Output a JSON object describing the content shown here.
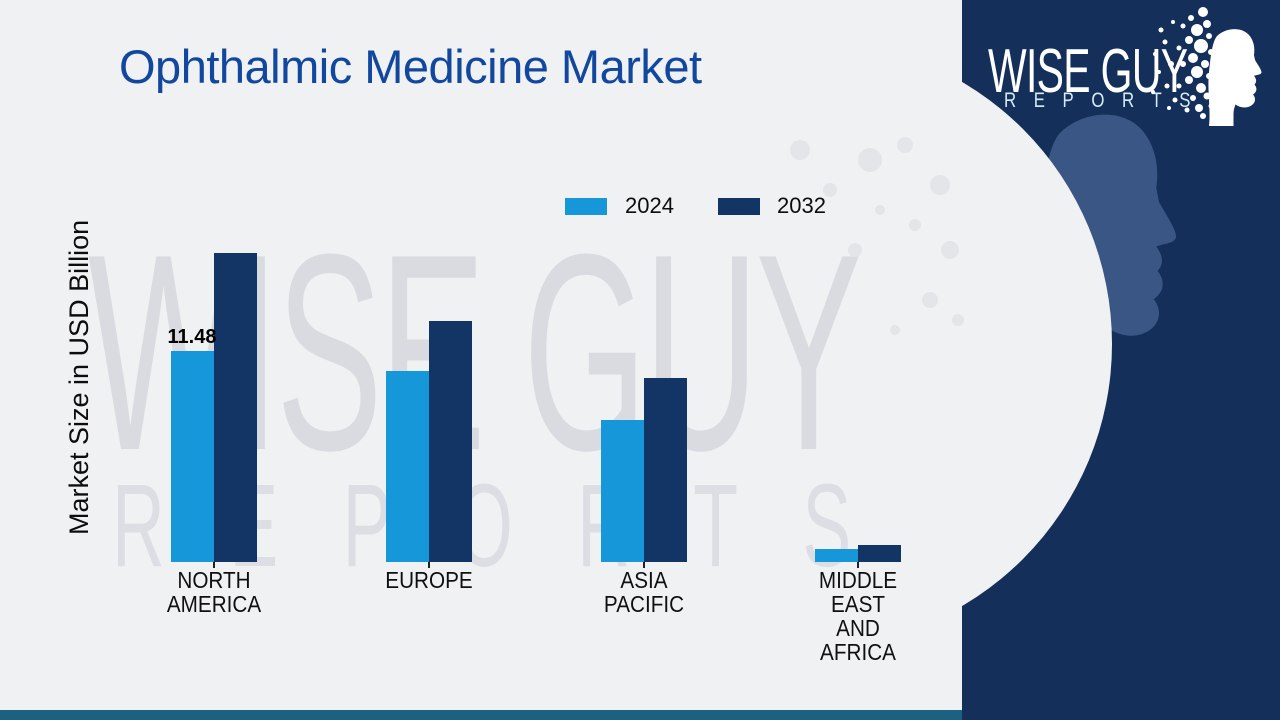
{
  "title": "Ophthalmic Medicine Market",
  "watermark": {
    "line1": "WISE GUY",
    "line2": "REPORTS"
  },
  "logo": {
    "line1": "WISE GUY",
    "line2": "REPORTS"
  },
  "chart_data": {
    "type": "bar",
    "title": "Ophthalmic Medicine Market",
    "ylabel": "Market Size in USD Billion",
    "categories": [
      [
        "NORTH",
        "AMERICA"
      ],
      [
        "EUROPE"
      ],
      [
        "ASIA",
        "PACIFIC"
      ],
      [
        "MIDDLE",
        "EAST",
        "AND",
        "AFRICA"
      ]
    ],
    "series": [
      {
        "name": "2024",
        "color": "#1597da",
        "values": [
          11.48,
          10.4,
          7.7,
          0.7
        ]
      },
      {
        "name": "2032",
        "color": "#133566",
        "values": [
          16.8,
          13.1,
          10.0,
          0.9
        ]
      }
    ],
    "annotations": [
      {
        "series_index": 0,
        "category_index": 0,
        "text": "11.48"
      }
    ],
    "ylim": [
      0,
      17
    ],
    "grid": false,
    "legend_position": "top"
  },
  "colors": {
    "background": "#f0f1f2",
    "title_blue": "#11479e",
    "bar_2024": "#1597da",
    "bar_2032": "#133566",
    "brand_panel_navy": "#132f5a",
    "face_silhouette": "#3a5684",
    "teal_strip": "#1d6080",
    "watermark_gray": "#d9dbe0",
    "logo_reports_text": "#d6ecf8"
  }
}
